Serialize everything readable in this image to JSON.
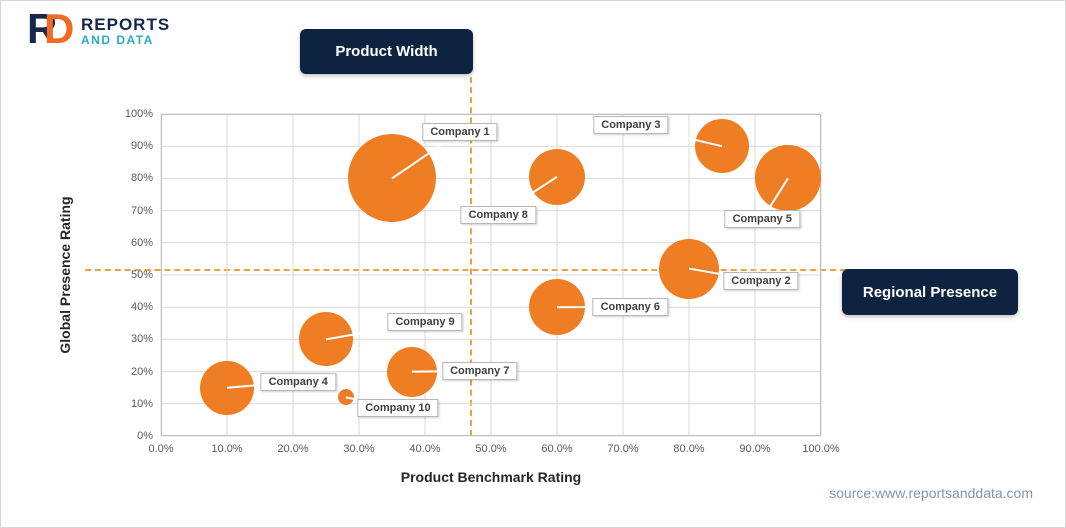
{
  "logo": {
    "mark_r": "R",
    "mark_d": "D",
    "line1": "REPORTS",
    "line2": "AND DATA"
  },
  "quadrant_labels": {
    "top": "Product Width",
    "right": "Regional Presence"
  },
  "source": "source:www.reportsanddata.com",
  "colors": {
    "bubble": "#ee7d23",
    "navy_box": "#0e2340",
    "dashed_line": "#e8a33d",
    "gridline": "#d9d9d9",
    "plot_border": "#bfbfbf"
  },
  "chart_data": {
    "type": "scatter",
    "subtype": "bubble",
    "title": "",
    "xlabel": "Product Benchmark Rating",
    "ylabel": "Global Presence Rating",
    "xlim": [
      0,
      100
    ],
    "ylim": [
      0,
      100
    ],
    "grid": true,
    "x_ticks": [
      "0.0%",
      "10.0%",
      "20.0%",
      "30.0%",
      "40.0%",
      "50.0%",
      "60.0%",
      "70.0%",
      "80.0%",
      "90.0%",
      "100.0%"
    ],
    "y_ticks": [
      "0%",
      "10%",
      "20%",
      "30%",
      "40%",
      "50%",
      "60%",
      "70%",
      "80%",
      "90%",
      "100%"
    ],
    "crosshair": {
      "x": 46.8,
      "y": 51.9
    },
    "points": [
      {
        "label": "Company 1",
        "x": 35,
        "y": 80,
        "r": 44,
        "lx": 45.3,
        "ly": 94.4
      },
      {
        "label": "Company 8",
        "x": 60,
        "y": 80.5,
        "r": 28,
        "lx": 51.1,
        "ly": 68.6
      },
      {
        "label": "Company 3",
        "x": 85,
        "y": 90,
        "r": 27,
        "lx": 71.2,
        "ly": 96.6
      },
      {
        "label": "Company 5",
        "x": 95,
        "y": 80,
        "r": 33,
        "lx": 91.1,
        "ly": 67.4
      },
      {
        "label": "Company 2",
        "x": 80,
        "y": 52,
        "r": 30,
        "lx": 90.9,
        "ly": 48.1
      },
      {
        "label": "Company 6",
        "x": 60,
        "y": 40,
        "r": 28,
        "lx": 71.1,
        "ly": 40.1
      },
      {
        "label": "Company 9",
        "x": 25,
        "y": 30,
        "r": 27,
        "lx": 40.0,
        "ly": 35.4
      },
      {
        "label": "Company 7",
        "x": 38,
        "y": 20,
        "r": 25,
        "lx": 48.3,
        "ly": 20.2
      },
      {
        "label": "Company 4",
        "x": 10,
        "y": 15,
        "r": 27,
        "lx": 20.8,
        "ly": 16.8
      },
      {
        "label": "Company 10",
        "x": 28,
        "y": 12,
        "r": 8,
        "lx": 35.9,
        "ly": 8.7
      }
    ]
  }
}
